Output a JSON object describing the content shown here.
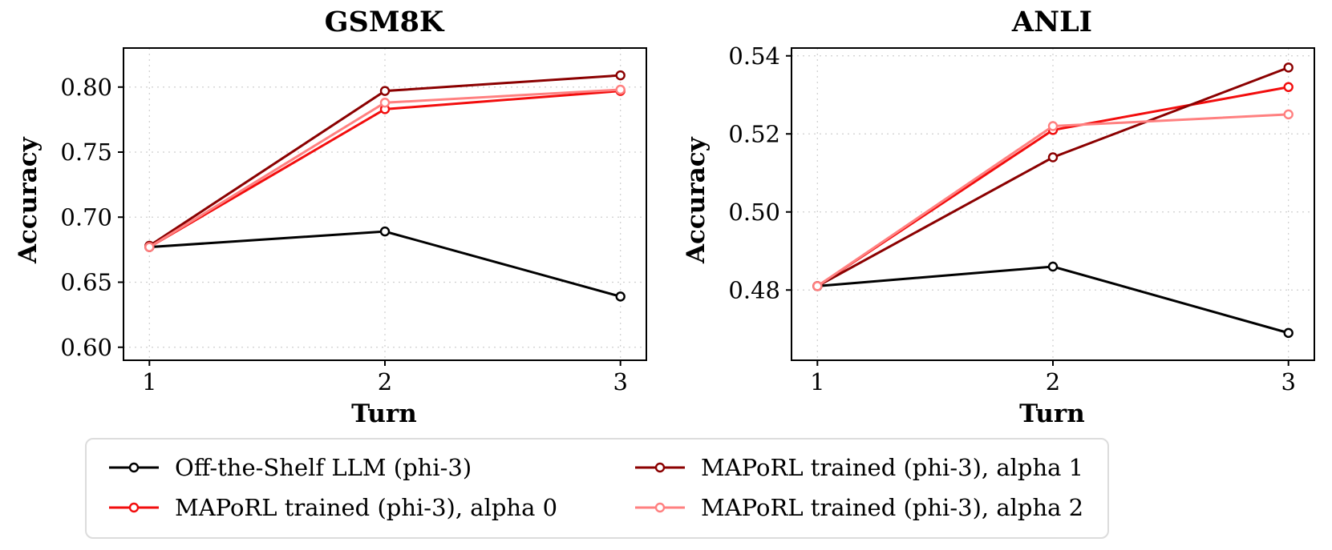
{
  "page": {
    "background": "#ffffff"
  },
  "chart_data": [
    {
      "type": "line",
      "title": "GSM8K",
      "xlabel": "Turn",
      "ylabel": "Accuracy",
      "x": [
        1,
        2,
        3
      ],
      "xlim": [
        0.89,
        3.11
      ],
      "ylim": [
        0.59,
        0.83
      ],
      "xticks": [
        1,
        2,
        3
      ],
      "xtick_labels": [
        "1",
        "2",
        "3"
      ],
      "yticks": [
        0.6,
        0.65,
        0.7,
        0.75,
        0.8
      ],
      "ytick_labels": [
        "0.60",
        "0.65",
        "0.70",
        "0.75",
        "0.80"
      ],
      "grid": true,
      "series": [
        {
          "name": "Off-the-Shelf LLM (phi-3)",
          "color": "#000000",
          "values": [
            0.677,
            0.689,
            0.639
          ]
        },
        {
          "name": "MAPoRL trained (phi-3), alpha 0",
          "color": "#f20d0d",
          "values": [
            0.677,
            0.783,
            0.797
          ]
        },
        {
          "name": "MAPoRL trained (phi-3), alpha 1",
          "color": "#8b0000",
          "values": [
            0.678,
            0.797,
            0.809
          ]
        },
        {
          "name": "MAPoRL trained (phi-3), alpha 2",
          "color": "#ff8080",
          "values": [
            0.677,
            0.788,
            0.798
          ]
        }
      ]
    },
    {
      "type": "line",
      "title": "ANLI",
      "xlabel": "Turn",
      "ylabel": "Accuracy",
      "x": [
        1,
        2,
        3
      ],
      "xlim": [
        0.89,
        3.11
      ],
      "ylim": [
        0.462,
        0.542
      ],
      "xticks": [
        1,
        2,
        3
      ],
      "xtick_labels": [
        "1",
        "2",
        "3"
      ],
      "yticks": [
        0.48,
        0.5,
        0.52,
        0.54
      ],
      "ytick_labels": [
        "0.48",
        "0.50",
        "0.52",
        "0.54"
      ],
      "grid": true,
      "series": [
        {
          "name": "Off-the-Shelf LLM (phi-3)",
          "color": "#000000",
          "values": [
            0.481,
            0.486,
            0.469
          ]
        },
        {
          "name": "MAPoRL trained (phi-3), alpha 0",
          "color": "#f20d0d",
          "values": [
            0.481,
            0.521,
            0.532
          ]
        },
        {
          "name": "MAPoRL trained (phi-3), alpha 1",
          "color": "#8b0000",
          "values": [
            0.481,
            0.514,
            0.537
          ]
        },
        {
          "name": "MAPoRL trained (phi-3), alpha 2",
          "color": "#ff8080",
          "values": [
            0.481,
            0.522,
            0.525
          ]
        }
      ]
    }
  ],
  "legend": {
    "entries": [
      {
        "label": "Off-the-Shelf LLM (phi-3)",
        "color": "#000000"
      },
      {
        "label": "MAPoRL trained (phi-3), alpha 1",
        "color": "#8b0000"
      },
      {
        "label": "MAPoRL trained (phi-3), alpha 0",
        "color": "#f20d0d"
      },
      {
        "label": "MAPoRL trained (phi-3), alpha 2",
        "color": "#ff8080"
      }
    ]
  },
  "style": {
    "grid_color": "#cfcfcf",
    "frame_color": "#000000",
    "legend_border_color": "#dcdcdc"
  }
}
